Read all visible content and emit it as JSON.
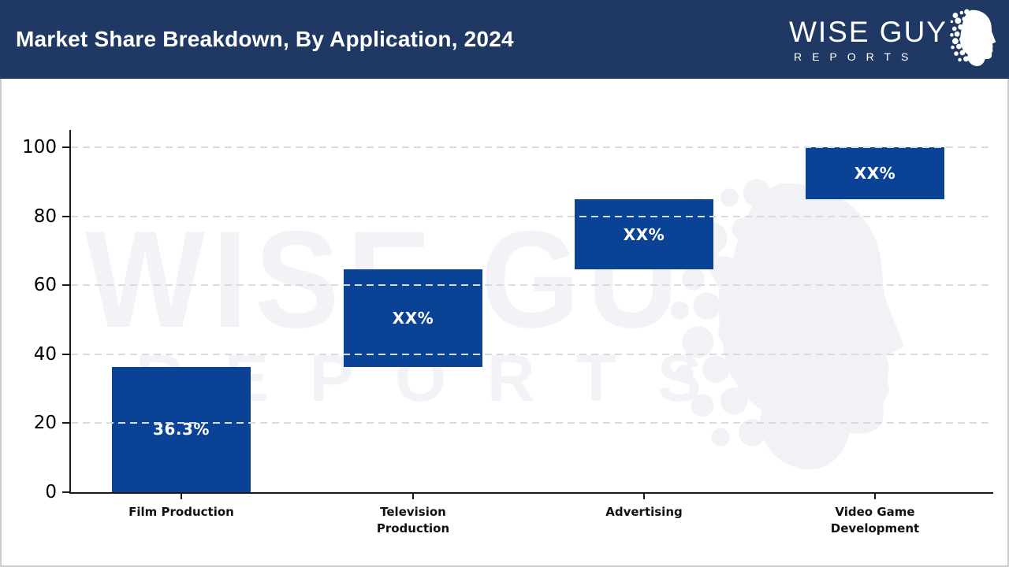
{
  "header": {
    "title": "Market Share Breakdown, By Application, 2024",
    "logo": {
      "line1": "WISE GUY",
      "line2": "REPORTS"
    }
  },
  "watermark": {
    "line1": "WISE GUY",
    "line2": "REPORTS"
  },
  "chart_data": {
    "type": "bar",
    "subtype": "floating-waterfall",
    "categories": [
      "Film Production",
      "Television Production",
      "Advertising",
      "Video Game Development"
    ],
    "category_lines": [
      [
        "Film Production"
      ],
      [
        "Television",
        "Production"
      ],
      [
        "Advertising"
      ],
      [
        "Video Game",
        "Development"
      ]
    ],
    "segments": [
      {
        "category": "Film Production",
        "start": 0,
        "end": 36.3,
        "value": 36.3,
        "label": "36.3%"
      },
      {
        "category": "Television Production",
        "start": 36.3,
        "end": 64.5,
        "value": 28.2,
        "label": "XX%"
      },
      {
        "category": "Advertising",
        "start": 64.5,
        "end": 84.9,
        "value": 20.4,
        "label": "XX%"
      },
      {
        "category": "Video Game Development",
        "start": 84.9,
        "end": 100,
        "value": 15.1,
        "label": "XX%"
      }
    ],
    "yticks": [
      0,
      20,
      40,
      60,
      80,
      100
    ],
    "ylim": [
      0,
      105
    ],
    "xlabel": "",
    "ylabel": "",
    "legend": "none",
    "grid": {
      "axis": "y",
      "style": "dashed",
      "on_top": true
    }
  },
  "colors": {
    "header_bg": "#1F3864",
    "bar": "#0A4296",
    "bar_label": "#FFFFFF",
    "grid": "#DBDBDB",
    "axis": "#1A1A1A",
    "watermark": "#F2F3F6",
    "frame_border": "#CCCCCC"
  }
}
